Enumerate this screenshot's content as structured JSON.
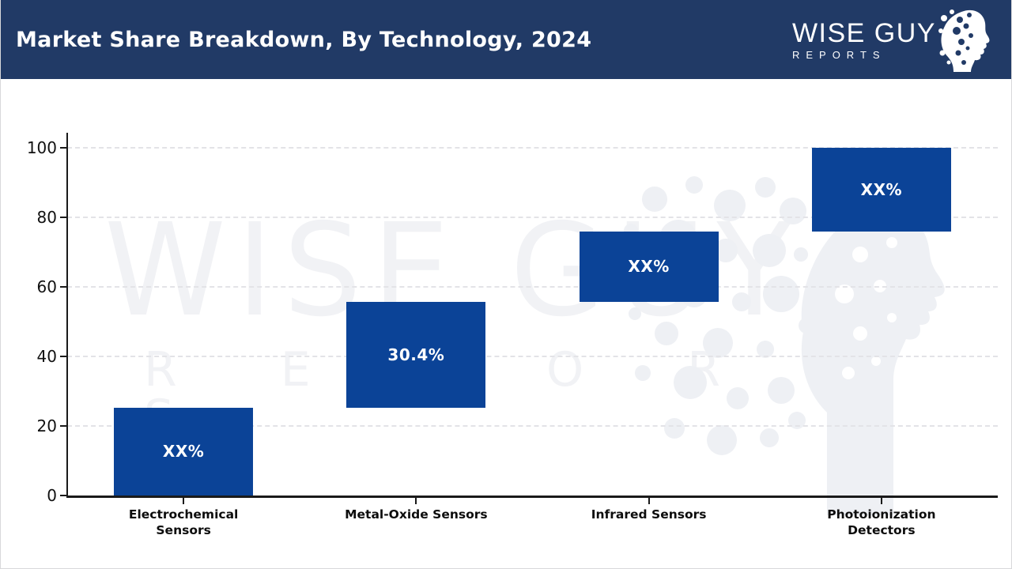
{
  "header": {
    "title": "Market Share Breakdown, By Technology, 2024",
    "logo": {
      "line1": "WISE GUY",
      "line2": "REPORTS"
    }
  },
  "watermark": {
    "line1": "WISE GUY",
    "line2": "REPORTS"
  },
  "colors": {
    "header_bg": "#213a66",
    "bar": "#0b4397",
    "grid": "#e3e3e7",
    "axis": "#1a1a1a",
    "watermark": "#f1f2f5"
  },
  "chart_data": {
    "type": "bar",
    "subtype": "floating-segment (waterfall) bars stacking to 100%",
    "title": "Market Share Breakdown, By Technology, 2024",
    "xlabel": "",
    "ylabel": "",
    "ylim": [
      0,
      100
    ],
    "yticks": [
      0,
      20,
      40,
      60,
      80,
      100
    ],
    "grid": "horizontal dashed",
    "legend": "none",
    "categories": [
      "Electrochemical Sensors",
      "Metal-Oxide Sensors",
      "Infrared Sensors",
      "Photoionization Detectors"
    ],
    "segments": [
      {
        "category": "Electrochemical Sensors",
        "start": 0,
        "end": 25.3,
        "value": 25.3,
        "data_label": "XX%"
      },
      {
        "category": "Metal-Oxide Sensors",
        "start": 25.3,
        "end": 55.7,
        "value": 30.4,
        "data_label": "30.4%"
      },
      {
        "category": "Infrared Sensors",
        "start": 55.7,
        "end": 76.0,
        "value": 20.3,
        "data_label": "XX%"
      },
      {
        "category": "Photoionization Detectors",
        "start": 76.0,
        "end": 100.0,
        "value": 24.0,
        "data_label": "XX%"
      }
    ]
  }
}
